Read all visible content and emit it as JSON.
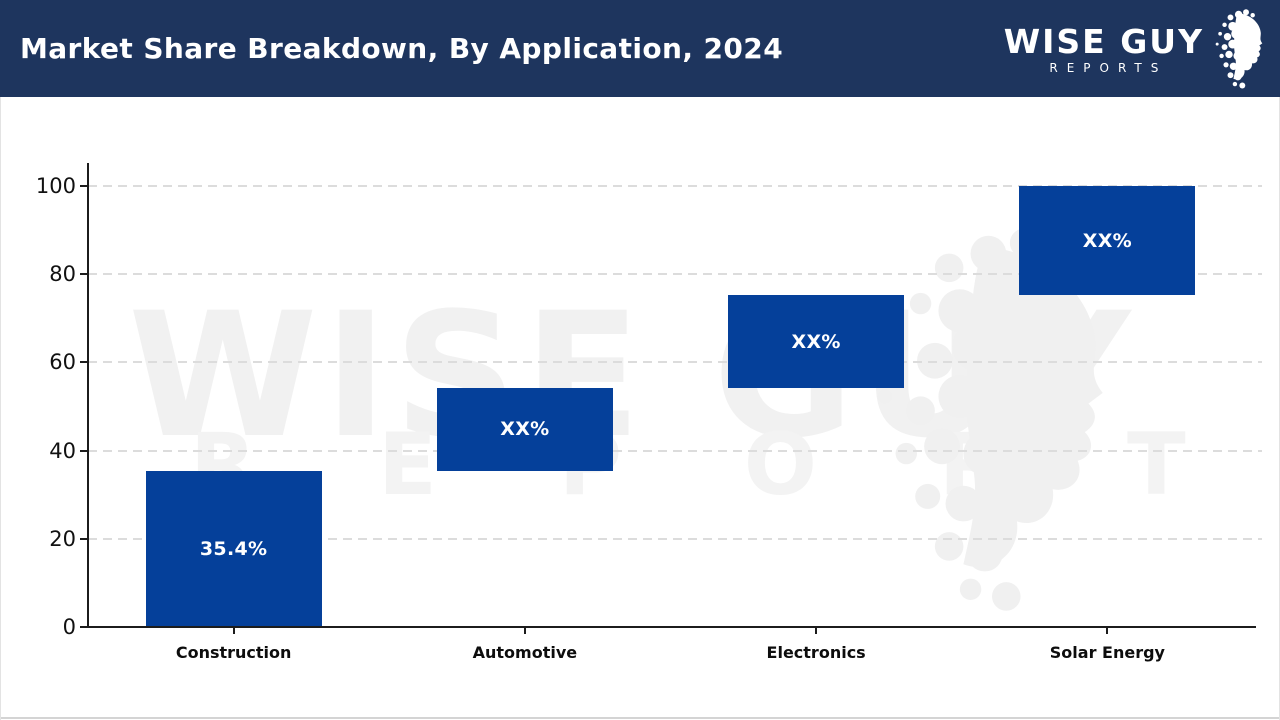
{
  "header": {
    "title": "Market Share Breakdown, By Application, 2024",
    "logo": {
      "line1": "WISE GUY",
      "line2": "REPORTS"
    }
  },
  "watermark": {
    "line1": "WISE GUY",
    "line2": "R E P O R T S"
  },
  "chart_data": {
    "type": "bar",
    "subtype": "waterfall",
    "title": "Market Share Breakdown, By Application, 2024",
    "categories": [
      "Construction",
      "Automotive",
      "Electronics",
      "Solar Energy"
    ],
    "segments": [
      {
        "category": "Construction",
        "start": 0,
        "end": 35.4,
        "label": "35.4%"
      },
      {
        "category": "Automotive",
        "start": 35.4,
        "end": 54.2,
        "label": "XX%"
      },
      {
        "category": "Electronics",
        "start": 54.2,
        "end": 75.2,
        "label": "XX%"
      },
      {
        "category": "Solar Energy",
        "start": 75.2,
        "end": 100,
        "label": "XX%"
      }
    ],
    "ylim": [
      0,
      100
    ],
    "yticks": [
      0,
      20,
      40,
      60,
      80,
      100
    ],
    "xlabel": "",
    "ylabel": "",
    "grid": "horizontal-dashed",
    "legend": "none"
  },
  "colors": {
    "header_bg": "#1e355e",
    "bar": "#05409a",
    "bar_label": "#ffffff",
    "grid": "#dcdcdc",
    "axis": "#1c1c1c",
    "tick_label": "#111111",
    "watermark": "#f1f1f1"
  }
}
